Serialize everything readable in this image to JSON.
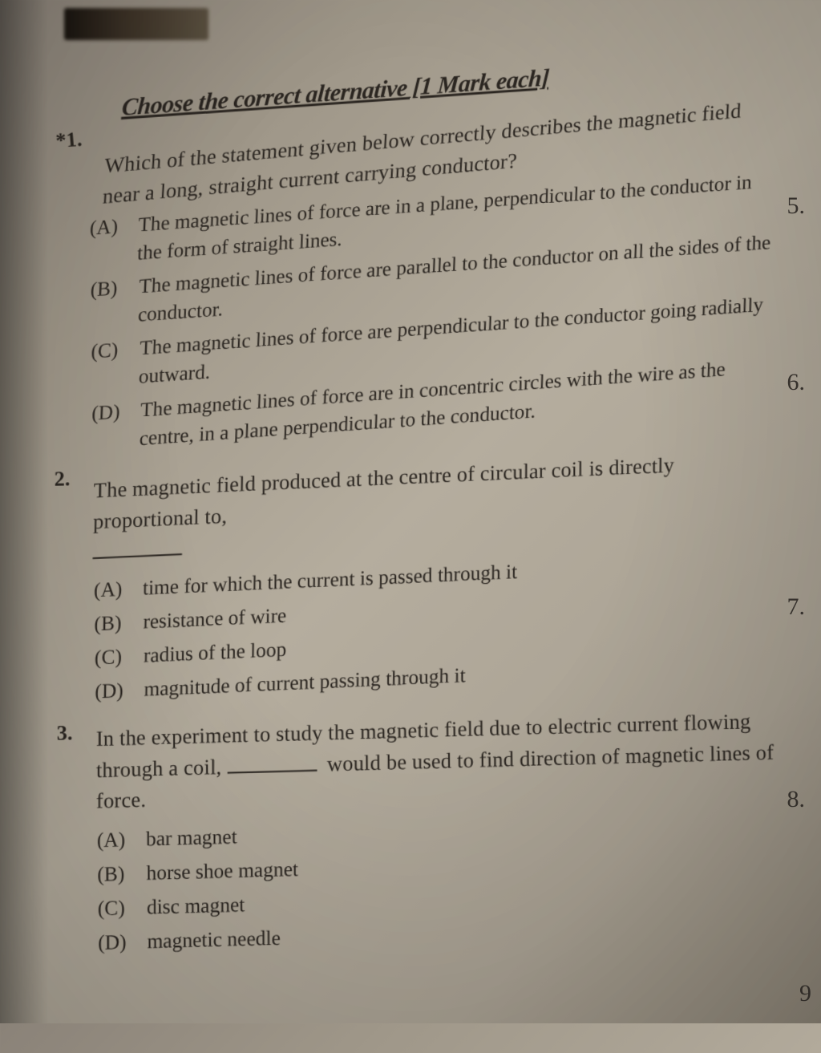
{
  "header": "Choose the correct alternative   [1 Mark each]",
  "questions": [
    {
      "num": "*1.",
      "text": "Which of the statement given below correctly describes the magnetic field near a long, straight current carrying conductor?",
      "options": [
        {
          "label": "(A)",
          "text": "The magnetic lines of force are in a plane, perpendicular to the conductor in the form of straight lines."
        },
        {
          "label": "(B)",
          "text": "The magnetic lines of force are parallel to the conductor on all the sides of the conductor."
        },
        {
          "label": "(C)",
          "text": "The magnetic lines of force are perpendicular to the conductor going radially outward."
        },
        {
          "label": "(D)",
          "text": "The magnetic lines of force are in concentric circles with the wire as the centre, in a plane perpendicular to the conductor."
        }
      ]
    },
    {
      "num": "2.",
      "text_pre": "The magnetic field produced at the centre of circular coil is directly proportional to,",
      "options": [
        {
          "label": "(A)",
          "text": "time for which the current is passed through it"
        },
        {
          "label": "(B)",
          "text": "resistance of wire"
        },
        {
          "label": "(C)",
          "text": "radius of the loop"
        },
        {
          "label": "(D)",
          "text": "magnitude of current passing through it"
        }
      ]
    },
    {
      "num": "3.",
      "text_pre": "In the experiment to study the magnetic field due to electric current flowing through a coil, ",
      "text_post": " would be used to find direction of magnetic lines of force.",
      "options": [
        {
          "label": "(A)",
          "text": "bar magnet"
        },
        {
          "label": "(B)",
          "text": "horse shoe magnet"
        },
        {
          "label": "(C)",
          "text": "disc magnet"
        },
        {
          "label": "(D)",
          "text": "magnetic needle"
        }
      ]
    }
  ],
  "side": {
    "n5": "5.",
    "n6": "6.",
    "n7": "7.",
    "n8": "8.",
    "n9": "9"
  }
}
